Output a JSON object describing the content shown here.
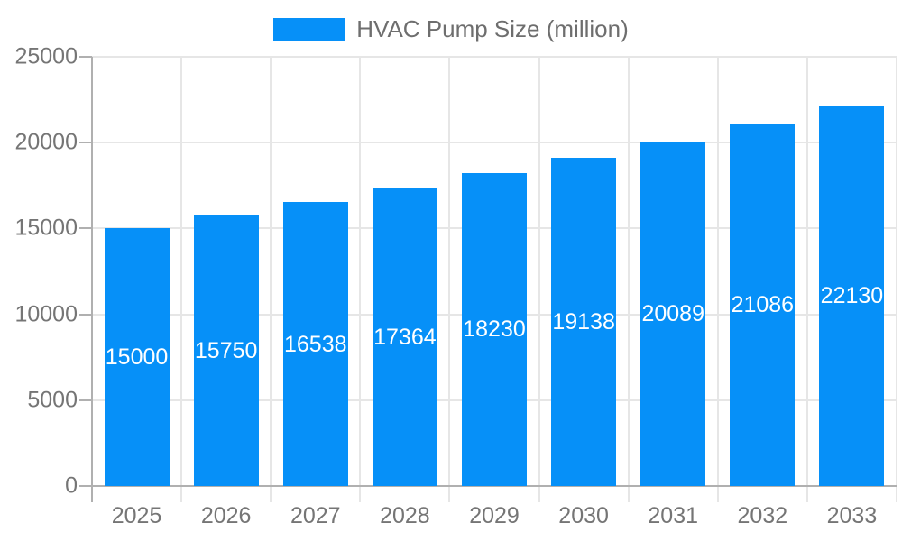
{
  "legend": {
    "label": "HVAC Pump Size (million)"
  },
  "chart_data": {
    "type": "bar",
    "title": "",
    "categories": [
      "2025",
      "2026",
      "2027",
      "2028",
      "2029",
      "2030",
      "2031",
      "2032",
      "2033"
    ],
    "values": [
      15000,
      15750,
      16538,
      17364,
      18230,
      19138,
      20089,
      21086,
      22130
    ],
    "series_name": "HVAC Pump Size (million)",
    "xlabel": "",
    "ylabel": "",
    "ylim": [
      0,
      25000
    ],
    "yticks": [
      0,
      5000,
      10000,
      15000,
      20000,
      25000
    ],
    "bar_labels": [
      "15000",
      "15750",
      "16538",
      "17364",
      "18230",
      "19138",
      "20089",
      "21086",
      "22130"
    ],
    "grid": "horizontal and vertical light gray gridlines",
    "legend_position": "top-center",
    "colors": {
      "bar": "#0690f8",
      "grid": "#e6e6e6",
      "axis": "#b0b0b0",
      "tick_label": "#757575",
      "legend_text": "#6e6e6e",
      "bar_label": "#ffffff",
      "background": "#ffffff"
    }
  }
}
